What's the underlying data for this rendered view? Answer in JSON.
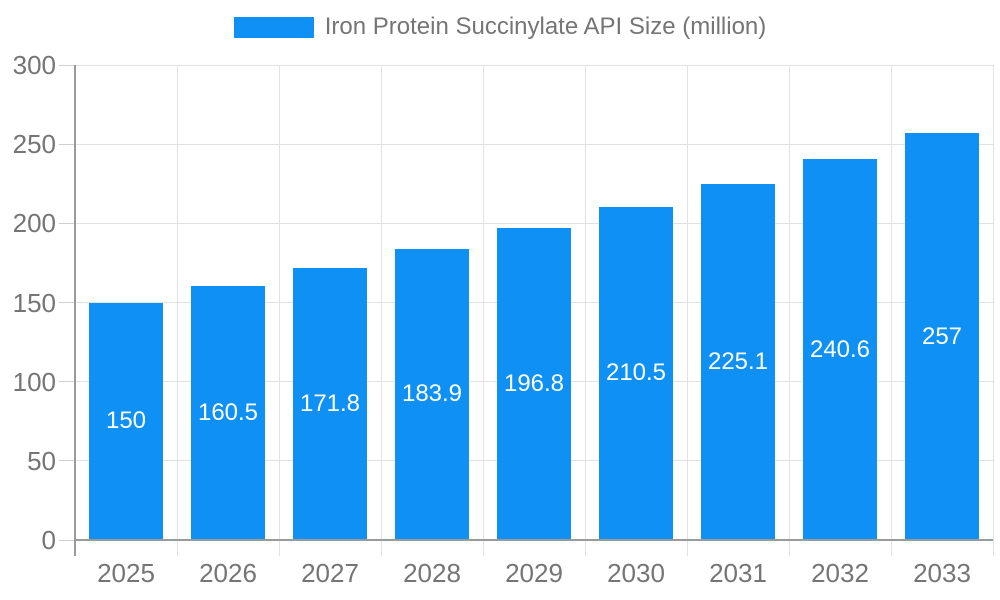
{
  "legend": {
    "label": "Iron Protein Succinylate API Size (million)"
  },
  "chart_data": {
    "type": "bar",
    "title": "Iron Protein Succinylate API Size (million)",
    "series_name": "Iron Protein Succinylate API Size (million)",
    "categories": [
      "2025",
      "2026",
      "2027",
      "2028",
      "2029",
      "2030",
      "2031",
      "2032",
      "2033"
    ],
    "values": [
      150,
      160.5,
      171.8,
      183.9,
      196.8,
      210.5,
      225.1,
      240.6,
      257
    ],
    "value_labels": [
      "150",
      "160.5",
      "171.8",
      "183.9",
      "196.8",
      "210.5",
      "225.1",
      "240.6",
      "257"
    ],
    "xlabel": "",
    "ylabel": "",
    "ylim": [
      0,
      300
    ],
    "yticks": [
      0,
      50,
      100,
      150,
      200,
      250,
      300
    ],
    "grid": true,
    "legend_position": "top-center",
    "value_label_position": "inside-center",
    "colors": {
      "bar": "#0e90f5",
      "axis_line": "#9a9a9a",
      "gridline": "#e2e2e2",
      "tick": "#cfcfcf",
      "axis_text": "#757575",
      "value_text": "#ffffff",
      "background": "#ffffff"
    }
  }
}
